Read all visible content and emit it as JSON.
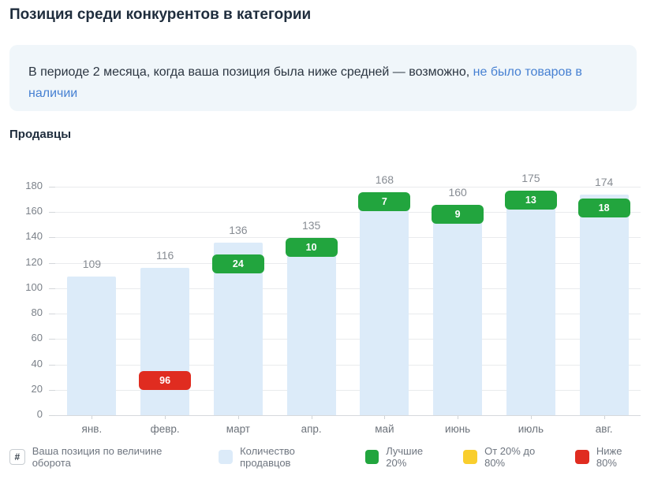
{
  "header": {
    "title": "Позиция среди конкурентов в категории"
  },
  "banner": {
    "text": "В периоде 2 месяца, когда ваша позиция была ниже средней — возможно, ",
    "link": "не было товаров в наличии"
  },
  "section": {
    "label": "Продавцы"
  },
  "chart_data": {
    "type": "bar",
    "title": "Продавцы",
    "categories": [
      "янв.",
      "февр.",
      "март",
      "апр.",
      "май",
      "июнь",
      "июль",
      "авг."
    ],
    "series": [
      {
        "name": "Количество продавцов",
        "type": "column",
        "values": [
          109,
          116,
          136,
          135,
          168,
          160,
          175,
          174
        ]
      },
      {
        "name": "Ваша позиция по величине оборота",
        "type": "position-badge",
        "values": [
          null,
          96,
          24,
          10,
          7,
          9,
          13,
          18
        ],
        "status": [
          null,
          "below80",
          "top20",
          "top20",
          "top20",
          "top20",
          "top20",
          "top20"
        ]
      }
    ],
    "ylim": [
      0,
      180
    ],
    "ytick_step": 20,
    "grid": true,
    "xlabel": "",
    "ylabel": "",
    "legend_position": "bottom"
  },
  "colors": {
    "bar": "#dcebf9",
    "top20": "#22a53e",
    "mid20_80": "#f9ce2d",
    "below80": "#e02c20",
    "banner_bg": "#f0f6fa",
    "link": "#4680d2",
    "title_text": "#1f2d3d"
  },
  "legend": {
    "hash_symbol": "#",
    "items": [
      {
        "name": "your-position",
        "swatch": "hash",
        "label": "Ваша позиция по величине оборота"
      },
      {
        "name": "sellers-count",
        "swatch": "bar",
        "label": "Количество продавцов"
      },
      {
        "name": "top-20",
        "swatch": "top20",
        "label": "Лучшие 20%"
      },
      {
        "name": "from-20-to-80",
        "swatch": "mid20_80",
        "label": "От 20% до 80%"
      },
      {
        "name": "below-80",
        "swatch": "below80",
        "label": "Ниже 80%"
      }
    ]
  }
}
